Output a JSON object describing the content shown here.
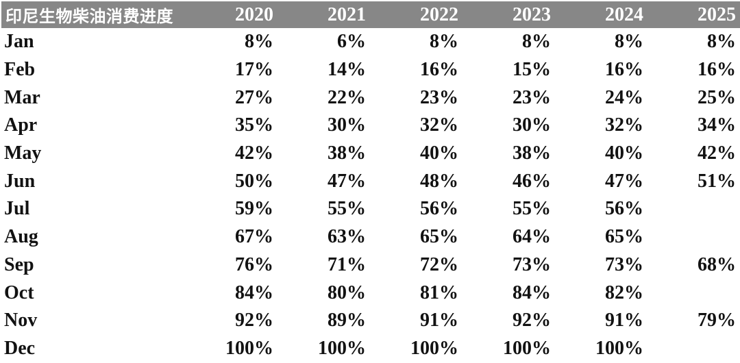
{
  "chart_data": {
    "type": "table",
    "title": "印尼生物柴油消费进度",
    "columns": [
      "2020",
      "2021",
      "2022",
      "2023",
      "2024",
      "2025"
    ],
    "row_label_header": "",
    "rows": [
      {
        "month": "Jan",
        "values": [
          "8%",
          "6%",
          "8%",
          "8%",
          "8%",
          "8%"
        ]
      },
      {
        "month": "Feb",
        "values": [
          "17%",
          "14%",
          "16%",
          "15%",
          "16%",
          "16%"
        ]
      },
      {
        "month": "Mar",
        "values": [
          "27%",
          "22%",
          "23%",
          "23%",
          "24%",
          "25%"
        ]
      },
      {
        "month": "Apr",
        "values": [
          "35%",
          "30%",
          "32%",
          "30%",
          "32%",
          "34%"
        ]
      },
      {
        "month": "May",
        "values": [
          "42%",
          "38%",
          "40%",
          "38%",
          "40%",
          "42%"
        ]
      },
      {
        "month": "Jun",
        "values": [
          "50%",
          "47%",
          "48%",
          "46%",
          "47%",
          "51%"
        ]
      },
      {
        "month": "Jul",
        "values": [
          "59%",
          "55%",
          "56%",
          "55%",
          "56%",
          ""
        ]
      },
      {
        "month": "Aug",
        "values": [
          "67%",
          "63%",
          "65%",
          "64%",
          "65%",
          ""
        ]
      },
      {
        "month": "Sep",
        "values": [
          "76%",
          "71%",
          "72%",
          "73%",
          "73%",
          "68%"
        ]
      },
      {
        "month": "Oct",
        "values": [
          "84%",
          "80%",
          "81%",
          "84%",
          "82%",
          ""
        ]
      },
      {
        "month": "Nov",
        "values": [
          "92%",
          "89%",
          "91%",
          "92%",
          "91%",
          "79%"
        ]
      },
      {
        "month": "Dec",
        "values": [
          "100%",
          "100%",
          "100%",
          "100%",
          "100%",
          ""
        ]
      }
    ],
    "layout": {
      "header_position": "top",
      "value_alignment": "right",
      "grid": "off"
    }
  },
  "colors": {
    "header_bg": "#878787",
    "header_text": "#ffffff",
    "body_text": "#121212",
    "page_bg": "#ffffff"
  }
}
